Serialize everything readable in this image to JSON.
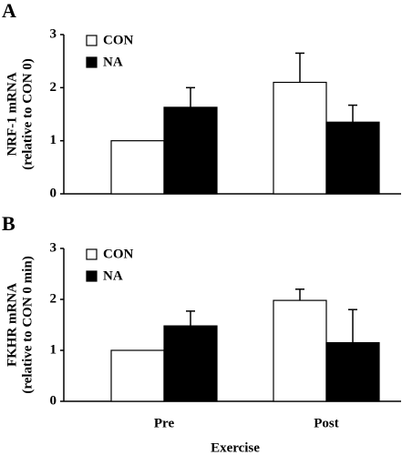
{
  "chart_data": [
    {
      "type": "bar",
      "panel": "A",
      "ylabel": [
        "NRF-1 mRNA",
        "(relative to CON 0)"
      ],
      "categories": [
        null,
        null
      ],
      "series": [
        {
          "name": "CON",
          "color": "#ffffff",
          "values": [
            1.0,
            2.1
          ],
          "errors": [
            null,
            0.55
          ]
        },
        {
          "name": "NA",
          "color": "#000000",
          "values": [
            1.63,
            1.35
          ],
          "errors": [
            0.37,
            0.32
          ]
        }
      ],
      "ylim": [
        0,
        3
      ],
      "yticks": [
        0,
        1,
        2,
        3
      ]
    },
    {
      "type": "bar",
      "panel": "B",
      "ylabel": [
        "FKHR mRNA",
        "(relative to CON 0 min)"
      ],
      "xlabel": "Exercise",
      "categories": [
        "Pre",
        "Post"
      ],
      "series": [
        {
          "name": "CON",
          "color": "#ffffff",
          "values": [
            1.0,
            1.98
          ],
          "errors": [
            null,
            0.22
          ]
        },
        {
          "name": "NA",
          "color": "#000000",
          "values": [
            1.48,
            1.15
          ],
          "errors": [
            0.29,
            0.65
          ]
        }
      ],
      "ylim": [
        0,
        3
      ],
      "yticks": [
        0,
        1,
        2,
        3
      ]
    }
  ]
}
